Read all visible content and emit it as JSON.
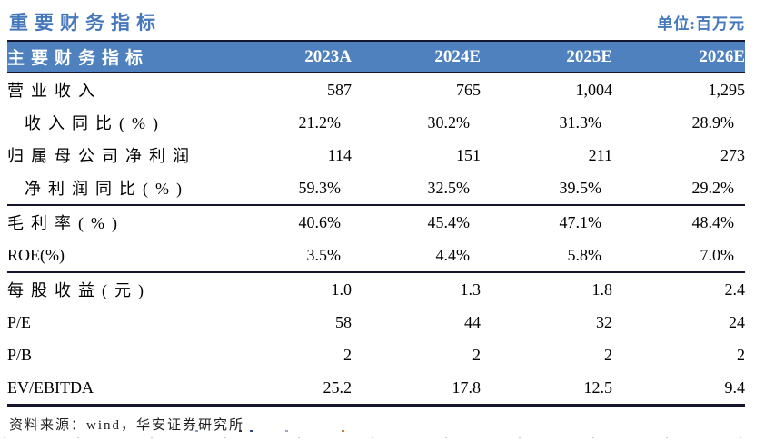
{
  "page": {
    "title": "重要财务指标",
    "unit_label": "单位:百万元",
    "source_note": "资料来源：wind，华安证券研究所",
    "colors": {
      "accent_blue_text": "#4678bc",
      "header_background": "#4e81bd",
      "header_text": "#ffffff",
      "rule_dark": "#15152c",
      "body_text": "#000000"
    }
  },
  "table": {
    "columns": [
      "主要财务指标",
      "2023A",
      "2024E",
      "2025E",
      "2026E"
    ],
    "rows": [
      {
        "label": "营业收入",
        "values": [
          "587",
          "765",
          "1,004",
          "1,295"
        ]
      },
      {
        "label": "收入同比(%)",
        "values": [
          "21.2%",
          "30.2%",
          "31.3%",
          "28.9%"
        ]
      },
      {
        "label": "归属母公司净利润",
        "values": [
          "114",
          "151",
          "211",
          "273"
        ]
      },
      {
        "label": "净利润同比(%)",
        "values": [
          "59.3%",
          "32.5%",
          "39.5%",
          "29.2%"
        ]
      },
      {
        "label": "毛利率(%)",
        "values": [
          "40.6%",
          "45.4%",
          "47.1%",
          "48.4%"
        ]
      },
      {
        "label": "ROE(%)",
        "values": [
          "3.5%",
          "4.4%",
          "5.8%",
          "7.0%"
        ]
      },
      {
        "label": "每股收益(元)",
        "values": [
          "1.0",
          "1.3",
          "1.8",
          "2.4"
        ]
      },
      {
        "label": "P/E",
        "values": [
          "58",
          "44",
          "32",
          "24"
        ]
      },
      {
        "label": "P/B",
        "values": [
          "2",
          "2",
          "2",
          "2"
        ]
      },
      {
        "label": "EV/EBITDA",
        "values": [
          "25.2",
          "17.8",
          "12.5",
          "9.4"
        ]
      }
    ]
  }
}
